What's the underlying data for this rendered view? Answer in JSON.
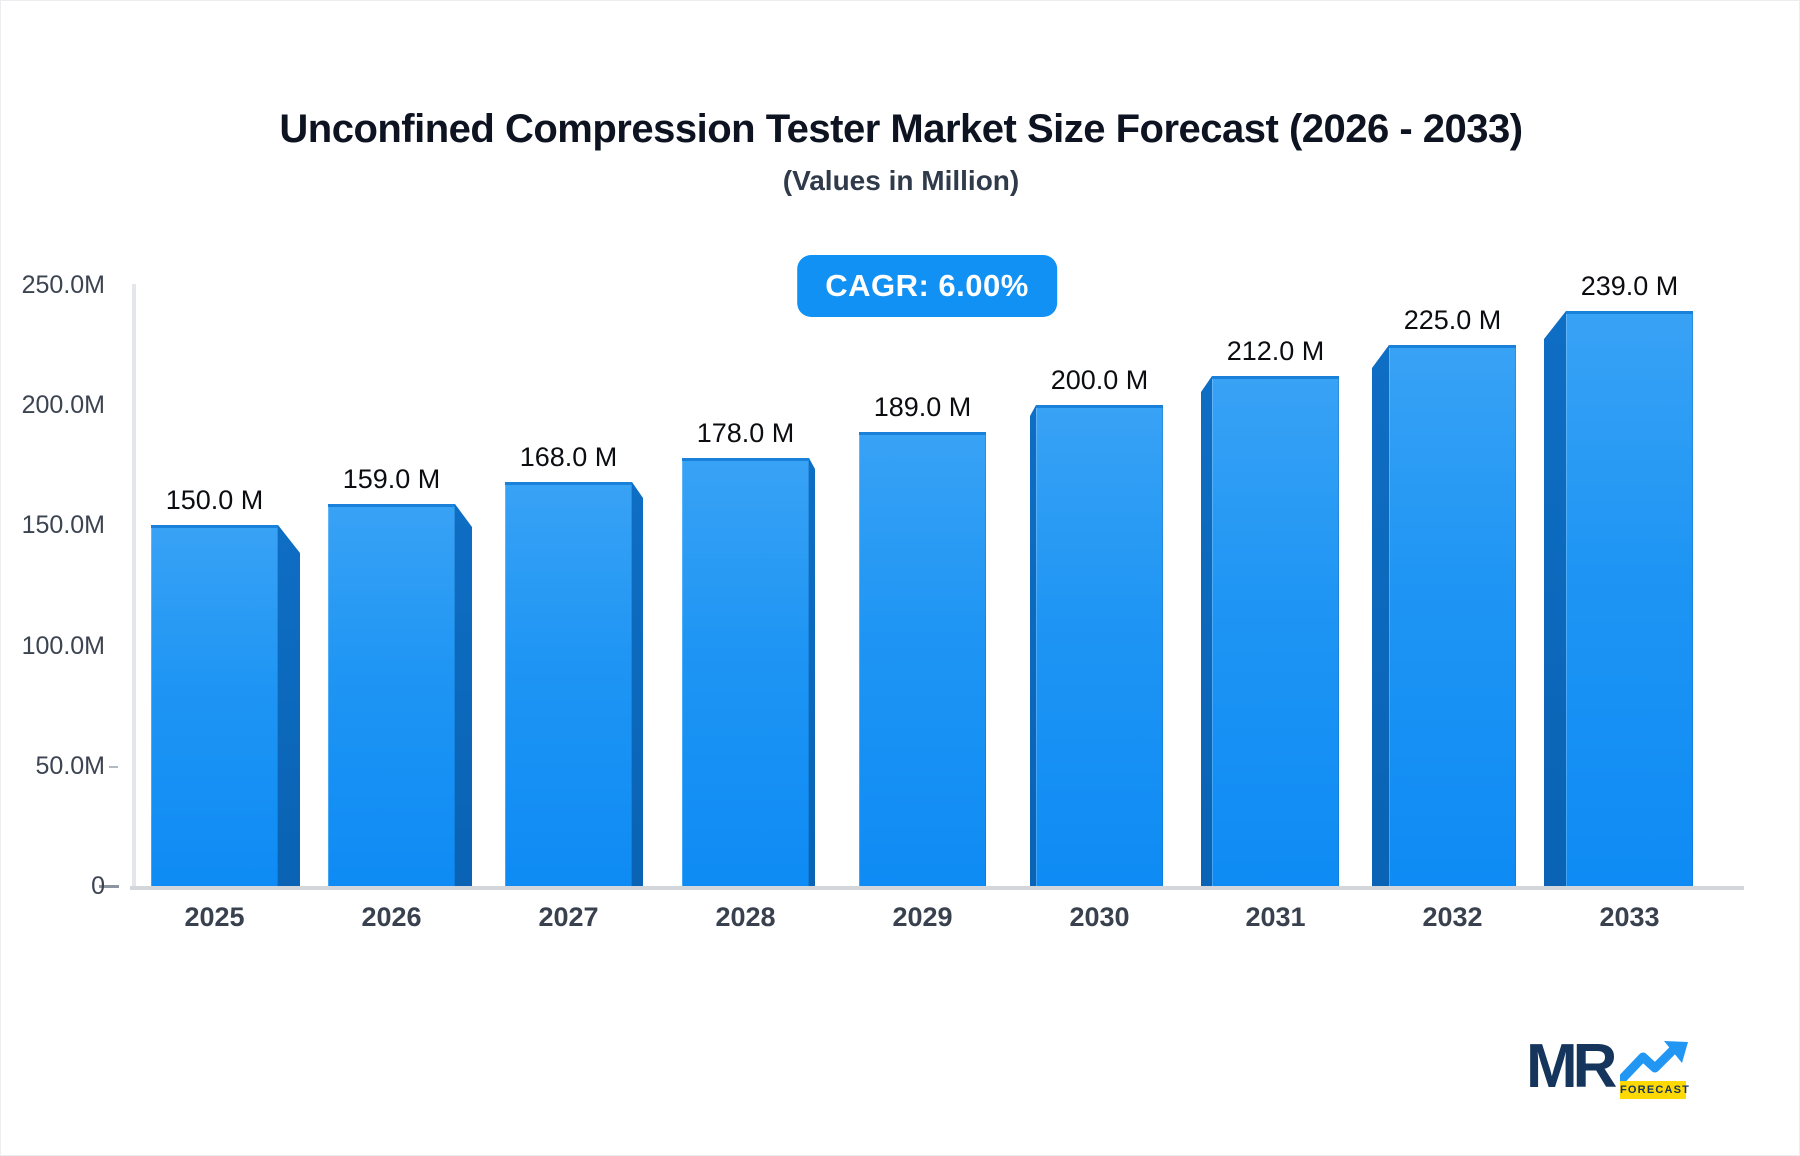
{
  "header": {
    "title": "Unconfined Compression Tester Market Size Forecast (2026 - 2033)",
    "subtitle": "(Values in Million)"
  },
  "badge": {
    "label": "CAGR: 6.00%",
    "color": "#1291f5"
  },
  "chart_data": {
    "type": "bar",
    "title": "Unconfined Compression Tester Market Size Forecast (2026 - 2033)",
    "subtitle": "(Values in Million)",
    "categories": [
      "2025",
      "2026",
      "2027",
      "2028",
      "2029",
      "2030",
      "2031",
      "2032",
      "2033"
    ],
    "values": [
      150.0,
      159.0,
      168.0,
      178.0,
      189.0,
      200.0,
      212.0,
      225.0,
      239.0
    ],
    "value_labels": [
      "150.0 M",
      "159.0 M",
      "168.0 M",
      "178.0 M",
      "189.0 M",
      "200.0 M",
      "212.0 M",
      "225.0 M",
      "239.0 M"
    ],
    "unit": "Million",
    "xlabel": "",
    "ylabel": "",
    "ylim": [
      0,
      250
    ],
    "y_ticks": [
      {
        "label": "250.0M",
        "value": 250
      },
      {
        "label": "200.0M",
        "value": 200
      },
      {
        "label": "150.0M",
        "value": 150
      },
      {
        "label": "100.0M",
        "value": 100
      },
      {
        "label": "50.0M",
        "value": 50
      },
      {
        "label": "0",
        "value": 0
      }
    ],
    "grid": false,
    "legend_position": "none",
    "bar_color_top": "#38a2f5",
    "bar_color_bottom": "#0e8bf4",
    "bar_side_color": "#0d6cc0"
  },
  "logo": {
    "text": "MR",
    "sub": "FORECAST",
    "navy": "#16355c",
    "blue": "#2196f3",
    "yellow": "#ffd903"
  }
}
